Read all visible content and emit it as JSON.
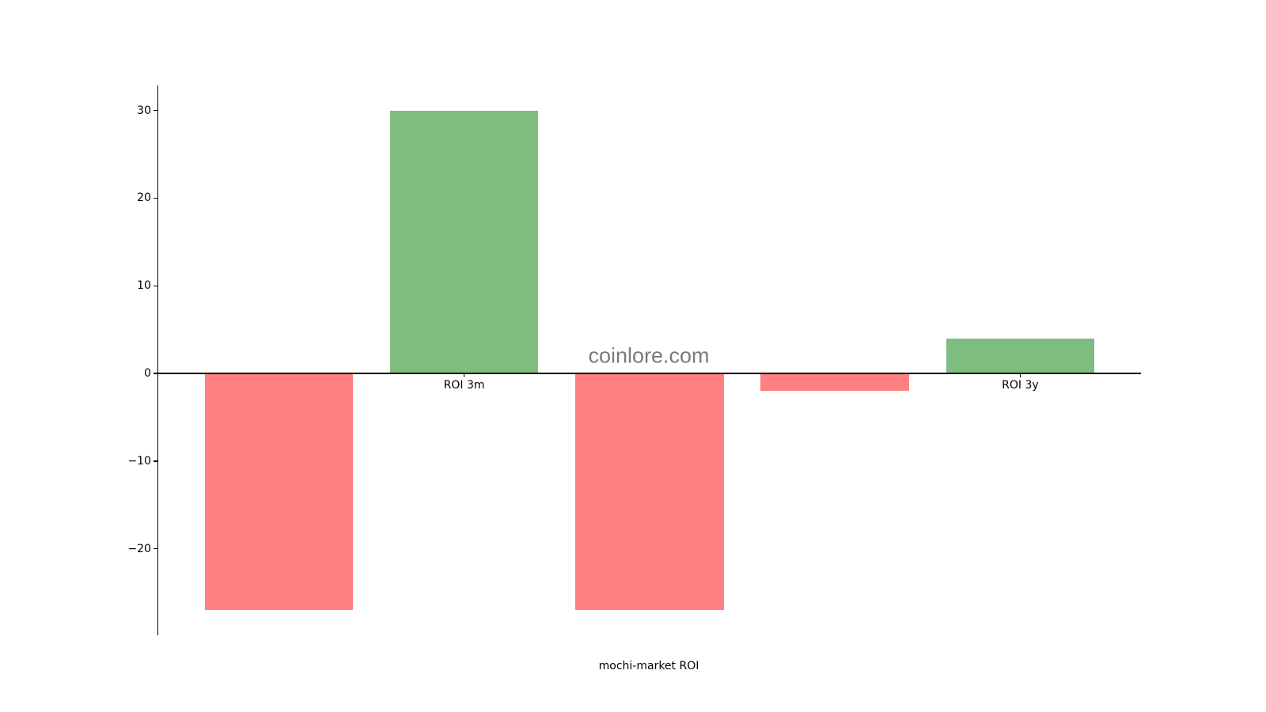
{
  "chart_data": {
    "type": "bar",
    "title": "mochi-market ROI",
    "title_position": "bottom",
    "watermark": "coinlore.com",
    "categories": [
      "",
      "ROI 3m",
      "",
      "",
      "ROI 3y"
    ],
    "values": [
      -27,
      30,
      -27,
      -2,
      4
    ],
    "bar_colors": [
      "#ff8080",
      "#7dbe80",
      "#ff8080",
      "#ff8080",
      "#7dbe80"
    ],
    "color_positive": "#7dbe80",
    "color_negative": "#ff8080",
    "yticks": [
      {
        "value": 30,
        "label": "30"
      },
      {
        "value": 20,
        "label": "20"
      },
      {
        "value": 10,
        "label": "10"
      },
      {
        "value": 0,
        "label": "0"
      },
      {
        "value": -10,
        "label": "−10"
      },
      {
        "value": -20,
        "label": "−20"
      }
    ],
    "ylim": [
      -29.85,
      32.85
    ],
    "xlim": [
      -0.65,
      4.65
    ],
    "bar_width": 0.8,
    "grid": false,
    "legend": false,
    "background_color": "#ffffff",
    "axis_color": "#000000",
    "text_color": "#000000",
    "watermark_color": "#7a7a7a"
  }
}
